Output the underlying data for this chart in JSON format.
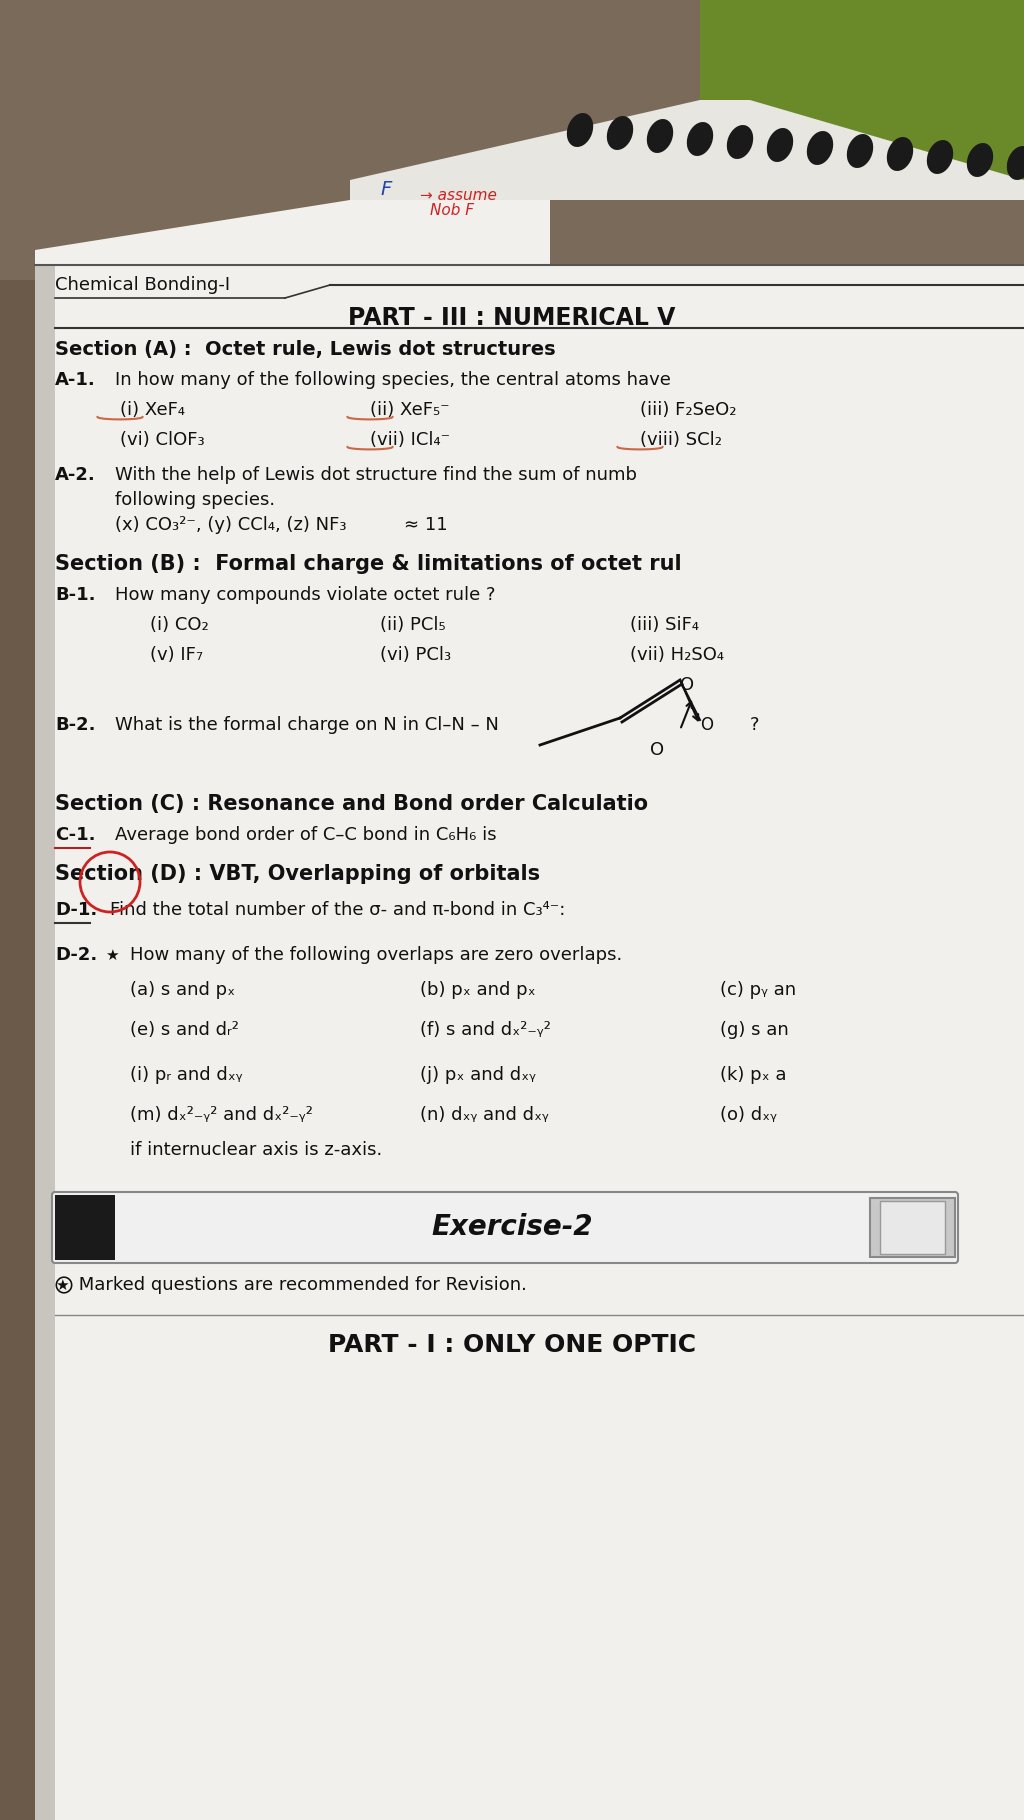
{
  "bg_color": "#d8d8d8",
  "paper_color": "#f0efeb",
  "paper_color2": "#e8e7e3",
  "title_header": "Chemical Bonding-I",
  "part_header": "PART - III : NUMERICAL V",
  "section_a_title": "Section (A) :  Octet rule, Lewis dot structures",
  "a1_label": "A-1.",
  "a1_text": "In how many of the following species, the central atoms have",
  "a1_items": [
    "(i) XeF₄",
    "(ii) XeF₅⁻",
    "(iii) F₂SeO₂",
    "(vi) ClOF₃",
    "(vii) ICl₄⁻",
    "(viii) SCl₂"
  ],
  "a2_label": "A-2.",
  "a2_text": "With the help of Lewis dot structure find the sum of numb",
  "a2_text2": "following species.",
  "a2_items": "(x) CO₃²⁻, (y) CCl₄, (z) NF₃",
  "a2_answer": "≈ 11",
  "section_b_title": "Section (B) :  Formal charge & limitations of octet rul",
  "b1_label": "B-1.",
  "b1_text": "How many compounds violate octet rule ?",
  "b1_items": [
    "(i) CO₂",
    "(ii) PCl₅",
    "(iii) SiF₄",
    "(v) IF₇",
    "(vi) PCl₃",
    "(vii) H₂SO₄"
  ],
  "b2_label": "B-2.",
  "b2_text": "What is the formal charge on N in Cl–N",
  "b2_text2": "?",
  "section_c_title": "Section (C) : Resonance and Bond order Calculatio",
  "c1_label": "C-1.",
  "c1_text": "Average bond order of C–C bond in C₆H₆ is",
  "section_d_title": "Section (D) : VBT, Overlapping of orbitals",
  "d1_label": "D-1.",
  "d1_text": "Find the total number of the σ- and π-bond in C₃⁴⁻:",
  "d2_label": "D-2.",
  "d2_mark": "⨀",
  "d2_text": "How many of the following overlaps are zero overlaps.",
  "d2_items_col1": [
    "(a) s and pₓ",
    "(e) s and dᵣ²",
    "(i) pᵣ and dₓᵧ",
    "(m) dₓ²₋ᵧ² and dₓ²₋ᵧ²"
  ],
  "d2_items_col2": [
    "(b) pₓ and pₓ",
    "(f) s and dₓ²₋ᵧ²",
    "(j) pₓ and dₓᵧ",
    "(n) dₓᵧ and dₓᵧ"
  ],
  "d2_items_col3": [
    "(c) pᵧ an",
    "(g) s an",
    "(k) pₓ a",
    "(o) dₓᵧ"
  ],
  "if_text": "if internuclear axis is z-axis.",
  "exercise_text": "Exercise-2",
  "marked_text": "⨀ Marked questions are recommended for Revision.",
  "part2_header": "PART - I : ONLY ONE OPTIC"
}
